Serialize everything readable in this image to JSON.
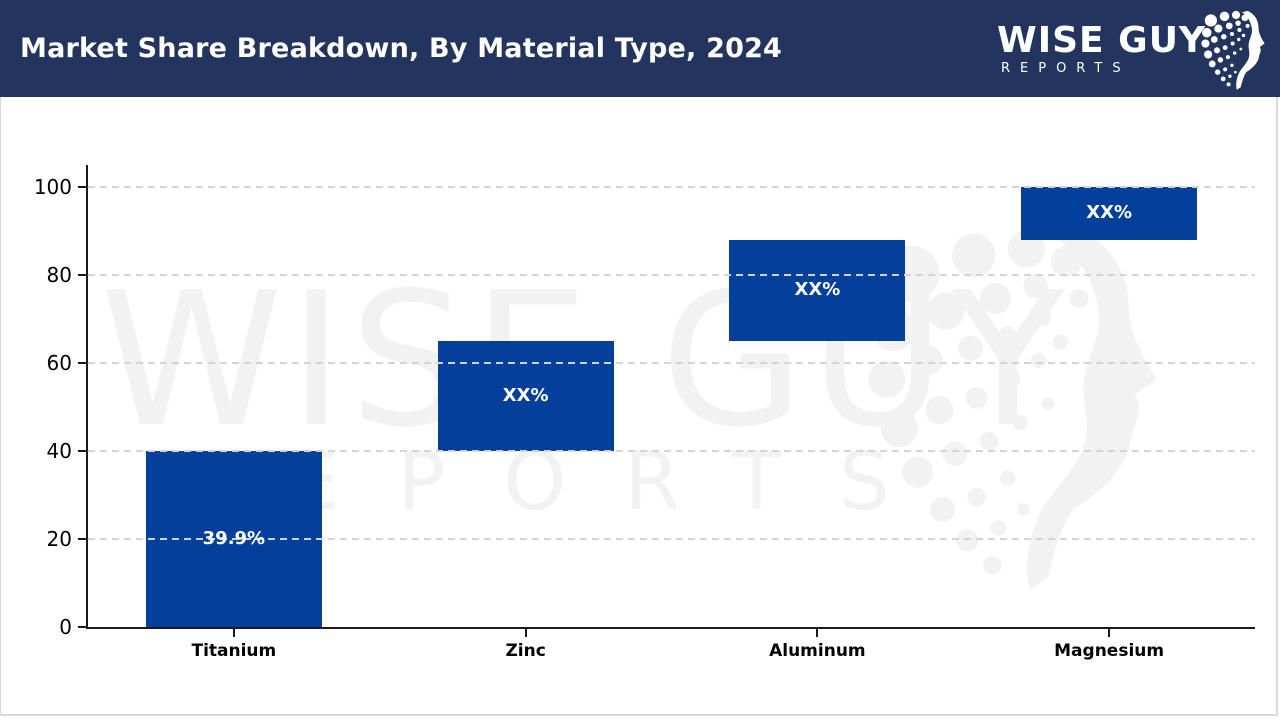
{
  "header": {
    "title": "Market Share Breakdown, By Material Type, 2024",
    "background_color": "#23355E",
    "logo": {
      "line1": "WISE GUY",
      "line2": "REPORTS"
    }
  },
  "watermark": {
    "line1": "WISE GUY",
    "line2": "REPORTS",
    "color": "#f2f2f2"
  },
  "chart_data": {
    "type": "bar",
    "subtype": "floating-waterfall",
    "title": "Market Share Breakdown, By Material Type, 2024",
    "categories": [
      "Titanium",
      "Zinc",
      "Aluminum",
      "Magnesium"
    ],
    "segments": [
      {
        "category": "Titanium",
        "start": 0,
        "end": 39.9,
        "label": "39.9%"
      },
      {
        "category": "Zinc",
        "start": 39.9,
        "end": 65,
        "label": "XX%"
      },
      {
        "category": "Aluminum",
        "start": 65,
        "end": 88,
        "label": "XX%"
      },
      {
        "category": "Magnesium",
        "start": 88,
        "end": 100,
        "label": "XX%"
      }
    ],
    "ylim": [
      0,
      100
    ],
    "yticks": [
      0,
      20,
      40,
      60,
      80,
      100
    ],
    "xlabel": "",
    "ylabel": "",
    "grid": "horizontal-dashed",
    "grid_on_top_of_bars": true,
    "legend": "none",
    "bar_color": "#04409B",
    "bar_label_color": "#ffffff",
    "axis_color": "#1a1a1a",
    "grid_color": "#d4d4d4"
  }
}
